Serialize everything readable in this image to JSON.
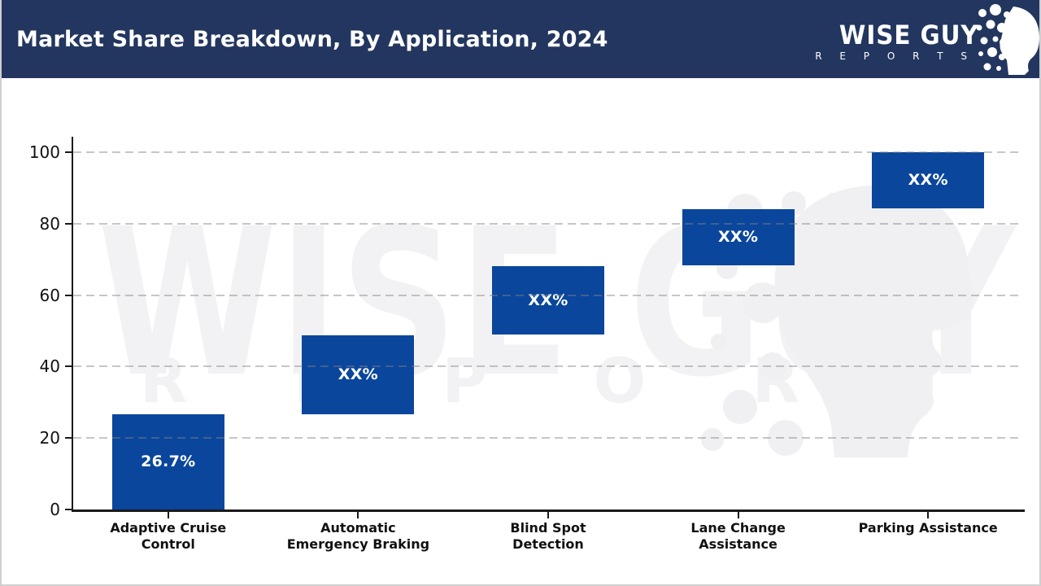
{
  "header": {
    "title": "Market Share Breakdown, By Application, 2024",
    "bg_color": "#22365f",
    "logo": {
      "wordmark": "WISE GUY",
      "subtext": "R E P O R T S"
    }
  },
  "watermark": {
    "line1": "WISE GUY",
    "line2": "R E P O R T S"
  },
  "chart_data": {
    "type": "bar",
    "subtype": "waterfall",
    "title": "Market Share Breakdown, By Application, 2024",
    "categories": [
      "Adaptive Cruise Control",
      "Automatic Emergency Braking",
      "Blind Spot Detection",
      "Lane Change Assistance",
      "Parking Assistance"
    ],
    "segments": [
      {
        "category": "Adaptive Cruise Control",
        "label_lines": [
          "Adaptive Cruise",
          "Control"
        ],
        "start": 0,
        "end": 26.7,
        "value_label": "26.7%"
      },
      {
        "category": "Automatic Emergency Braking",
        "label_lines": [
          "Automatic",
          "Emergency Braking"
        ],
        "start": 26.7,
        "end": 48.7,
        "value_label": "XX%"
      },
      {
        "category": "Blind Spot Detection",
        "label_lines": [
          "Blind Spot",
          "Detection"
        ],
        "start": 49.0,
        "end": 68.1,
        "value_label": "XX%"
      },
      {
        "category": "Lane Change Assistance",
        "label_lines": [
          "Lane Change",
          "Assistance"
        ],
        "start": 68.3,
        "end": 84.1,
        "value_label": "XX%"
      },
      {
        "category": "Parking Assistance",
        "label_lines": [
          "Parking Assistance"
        ],
        "start": 84.3,
        "end": 100.0,
        "value_label": "XX%"
      }
    ],
    "ylim": [
      0,
      100
    ],
    "yticks": [
      0,
      20,
      40,
      60,
      80,
      100
    ],
    "grid": "horizontal dashed, drawn over bars",
    "legend": "none",
    "bar_color": "#0a469c",
    "value_label_color": "#ffffff"
  }
}
